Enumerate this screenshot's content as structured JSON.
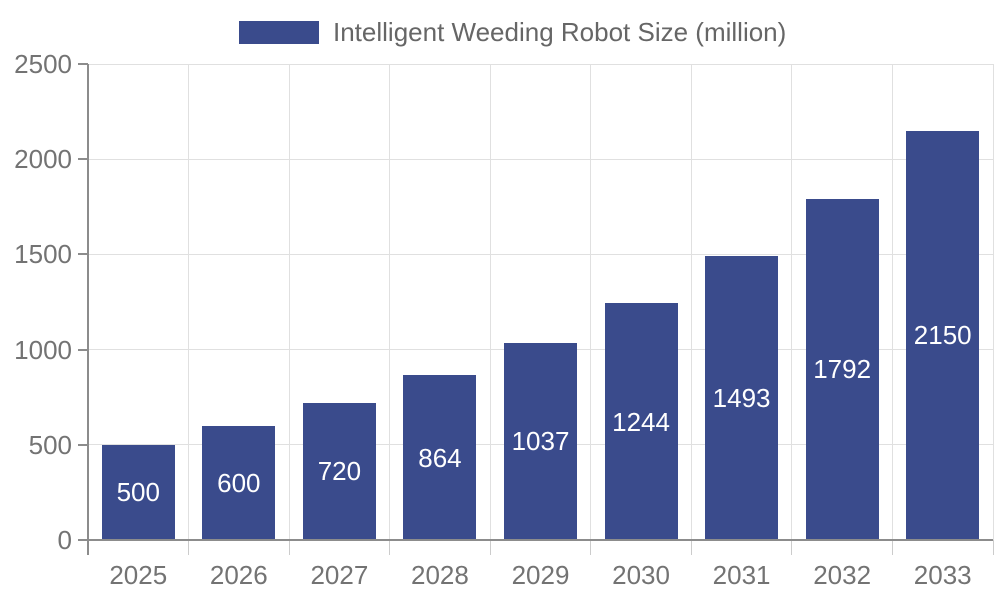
{
  "chart_data": {
    "type": "bar",
    "title": "",
    "legend": "Intelligent Weeding Robot Size (million)",
    "legend_position": "top",
    "categories": [
      "2025",
      "2026",
      "2027",
      "2028",
      "2029",
      "2030",
      "2031",
      "2032",
      "2033"
    ],
    "values": [
      500,
      600,
      720,
      864,
      1037,
      1244,
      1493,
      1792,
      2150
    ],
    "value_labels": [
      "500",
      "600",
      "720",
      "864",
      "1037",
      "1244",
      "1493",
      "1792",
      "2150"
    ],
    "xlabel": "",
    "ylabel": "",
    "ylim": [
      0,
      2500
    ],
    "yticks": [
      0,
      500,
      1000,
      1500,
      2000,
      2500
    ],
    "ytick_labels": [
      "0",
      "500",
      "1000",
      "1500",
      "2000",
      "2500"
    ],
    "grid": true,
    "colors": {
      "bar": "#3a4b8c",
      "grid": "#e0e0e0",
      "axis": "#8c8c8c",
      "tick_text": "#737373",
      "legend_text": "#666666",
      "bar_label_text": "#ffffff",
      "background": "#ffffff"
    }
  }
}
